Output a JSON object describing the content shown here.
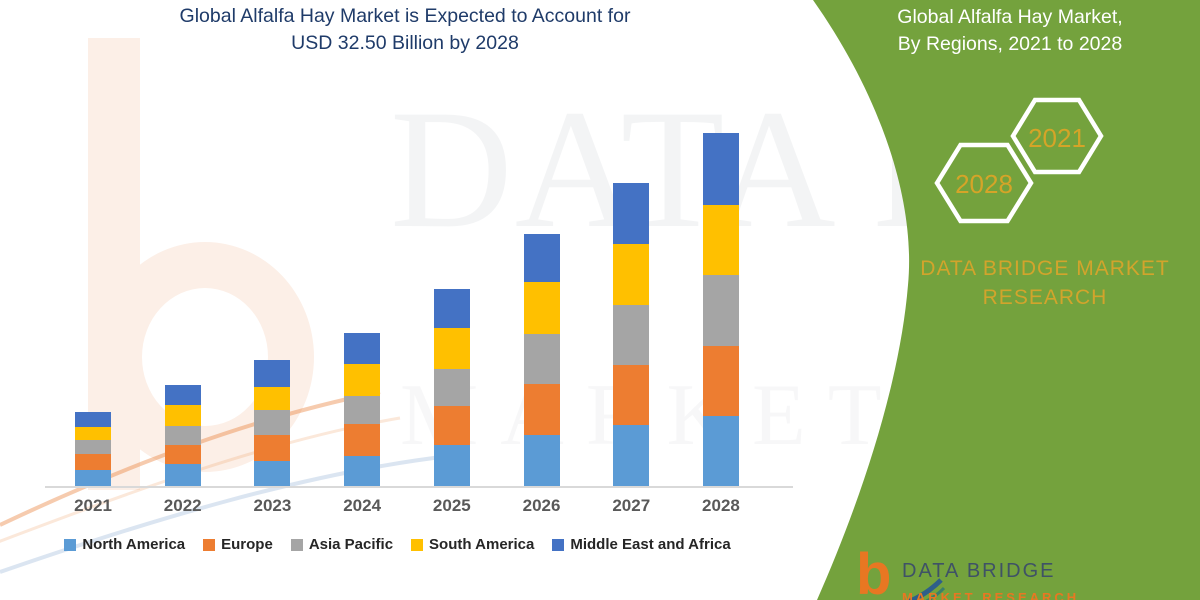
{
  "chart_title": {
    "line1": "Global Alfalfa Hay Market is Expected to Account for",
    "line2": "USD 32.50 Billion by 2028"
  },
  "chart_data": {
    "type": "bar",
    "stacked": true,
    "title": "Global Alfalfa Hay Market is Expected to Account for USD 32.50 Billion by 2028",
    "unit": "USD Billion",
    "categories": [
      "2021",
      "2022",
      "2023",
      "2024",
      "2025",
      "2026",
      "2027",
      "2028"
    ],
    "series": [
      {
        "name": "North America",
        "color": "#5B9BD5",
        "values": [
          1.5,
          2.0,
          2.3,
          2.8,
          3.8,
          4.7,
          5.6,
          6.4
        ]
      },
      {
        "name": "Europe",
        "color": "#ED7D31",
        "values": [
          1.4,
          1.8,
          2.4,
          2.9,
          3.6,
          4.7,
          5.5,
          6.5
        ]
      },
      {
        "name": "Asia Pacific",
        "color": "#A5A5A5",
        "values": [
          1.3,
          1.7,
          2.3,
          2.6,
          3.4,
          4.6,
          5.6,
          6.5
        ]
      },
      {
        "name": "South America",
        "color": "#FFC000",
        "values": [
          1.2,
          2.0,
          2.1,
          2.9,
          3.7,
          4.8,
          5.6,
          6.5
        ]
      },
      {
        "name": "Middle East and Africa",
        "color": "#4472C4",
        "values": [
          1.4,
          1.8,
          2.5,
          2.9,
          3.6,
          4.4,
          5.6,
          6.6
        ]
      }
    ],
    "totals": [
      6.8,
      9.3,
      11.6,
      14.1,
      18.1,
      23.2,
      27.9,
      32.5
    ],
    "ylim": [
      0,
      32.5
    ],
    "y_axis_visible": false,
    "gridlines": false,
    "legend_position": "bottom"
  },
  "side_panel": {
    "title_line1": "Global Alfalfa Hay Market,",
    "title_line2": "By Regions, 2021 to 2028",
    "hexagons": [
      {
        "label": "2028"
      },
      {
        "label": "2021"
      }
    ],
    "brand_line1": "DATA BRIDGE MARKET",
    "brand_line2": "RESEARCH",
    "colors": {
      "background": "#74A23D",
      "accent_gold": "#D2A42C",
      "text_white": "#FFFFFF"
    }
  },
  "footer_logo": {
    "glyph": "b",
    "text": "DATA BRIDGE",
    "subtext": "MARKET RESEARCH"
  },
  "watermark": {
    "letters_top": "DATA B",
    "letters_bottom": "MARKET RE"
  },
  "style_colors": {
    "title_navy": "#1F3B69",
    "axis_gray": "#D9D9D9",
    "year_label_gray": "#595959"
  }
}
